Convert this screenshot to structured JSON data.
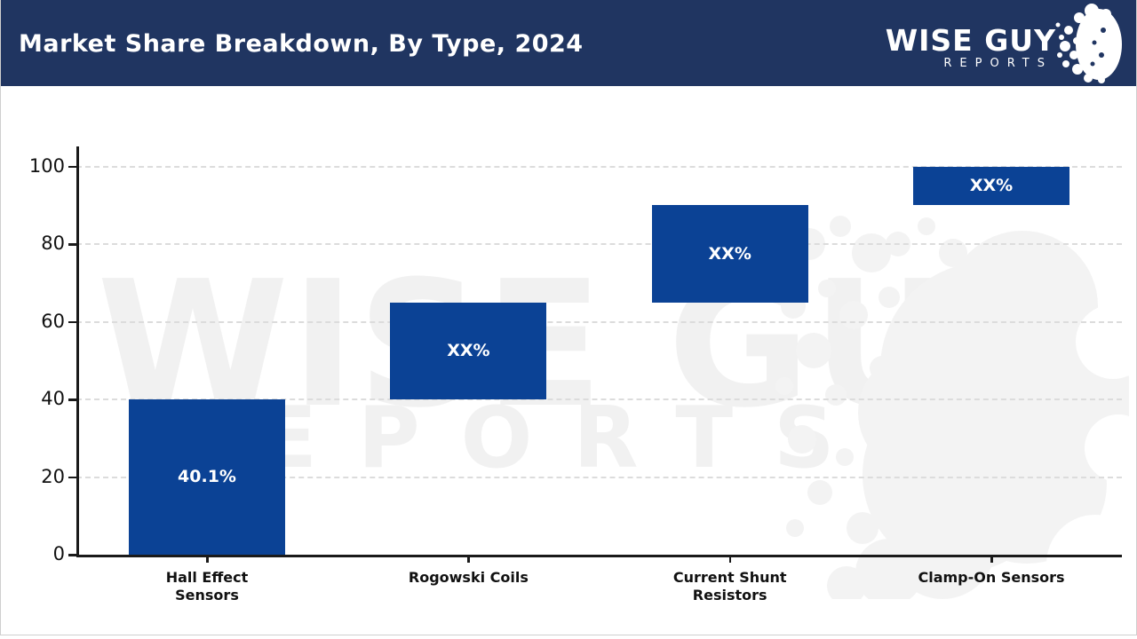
{
  "header": {
    "title": "Market Share Breakdown, By Type, 2024",
    "logo": {
      "line1": "WISE GUY",
      "line2": "REPORTS"
    }
  },
  "watermark": {
    "line1": "WISE GUY",
    "line2": "REPORTS"
  },
  "colors": {
    "header_bg": "#203561",
    "bar": "#0b4295",
    "bar_label": "#ffffff",
    "gridline": "#dcdcdc",
    "axis": "#1a1a1a",
    "watermark": "#f1f1f1"
  },
  "chart_data": {
    "type": "bar",
    "subtype": "waterfall",
    "title": "Market Share Breakdown, By Type, 2024",
    "xlabel": "",
    "ylabel": "",
    "categories": [
      "Hall Effect\nSensors",
      "Rogowski Coils",
      "Current Shunt\nResistors",
      "Clamp-On Sensors"
    ],
    "segments": [
      {
        "category": "Hall Effect Sensors",
        "start": 0,
        "end": 40.1,
        "label": "40.1%"
      },
      {
        "category": "Rogowski Coils",
        "start": 40.1,
        "end": 65,
        "label": "XX%"
      },
      {
        "category": "Current Shunt Resistors",
        "start": 65,
        "end": 90,
        "label": "XX%"
      },
      {
        "category": "Clamp-On Sensors",
        "start": 90,
        "end": 100,
        "label": "XX%"
      }
    ],
    "yticks": [
      0,
      20,
      40,
      60,
      80,
      100
    ],
    "ylim": [
      0,
      105
    ],
    "grid": "horizontal-dashed",
    "legend": "none"
  }
}
